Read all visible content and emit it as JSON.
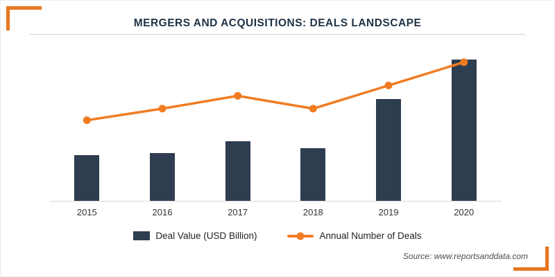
{
  "title": "MERGERS AND ACQUISITIONS: DEALS LANDSCAPE",
  "source": "Source: www.reportsanddata.com",
  "legend": [
    {
      "label": "Deal Value (USD Billion)"
    },
    {
      "label": "Annual Number of Deals"
    }
  ],
  "colors": {
    "bar": "#2e3d50",
    "line": "#f17b21",
    "accent": "#e87722",
    "title_text": "#1f3245"
  },
  "chart_data": {
    "type": "combo",
    "categories": [
      "2015",
      "2016",
      "2017",
      "2018",
      "2019",
      "2020"
    ],
    "series": [
      {
        "name": "Deal Value (USD Billion)",
        "type": "bar",
        "values": [
          20,
          21,
          26,
          23,
          44,
          61
        ]
      },
      {
        "name": "Annual Number of Deals",
        "type": "line",
        "values": [
          350,
          400,
          455,
          400,
          500,
          600
        ]
      }
    ],
    "bar_ylim": [
      0,
      68
    ],
    "line_ylim": [
      0,
      680
    ],
    "title": "MERGERS AND ACQUISITIONS: DEALS LANDSCAPE",
    "xlabel": "",
    "ylabel": "",
    "grid": false,
    "legend_position": "bottom"
  }
}
